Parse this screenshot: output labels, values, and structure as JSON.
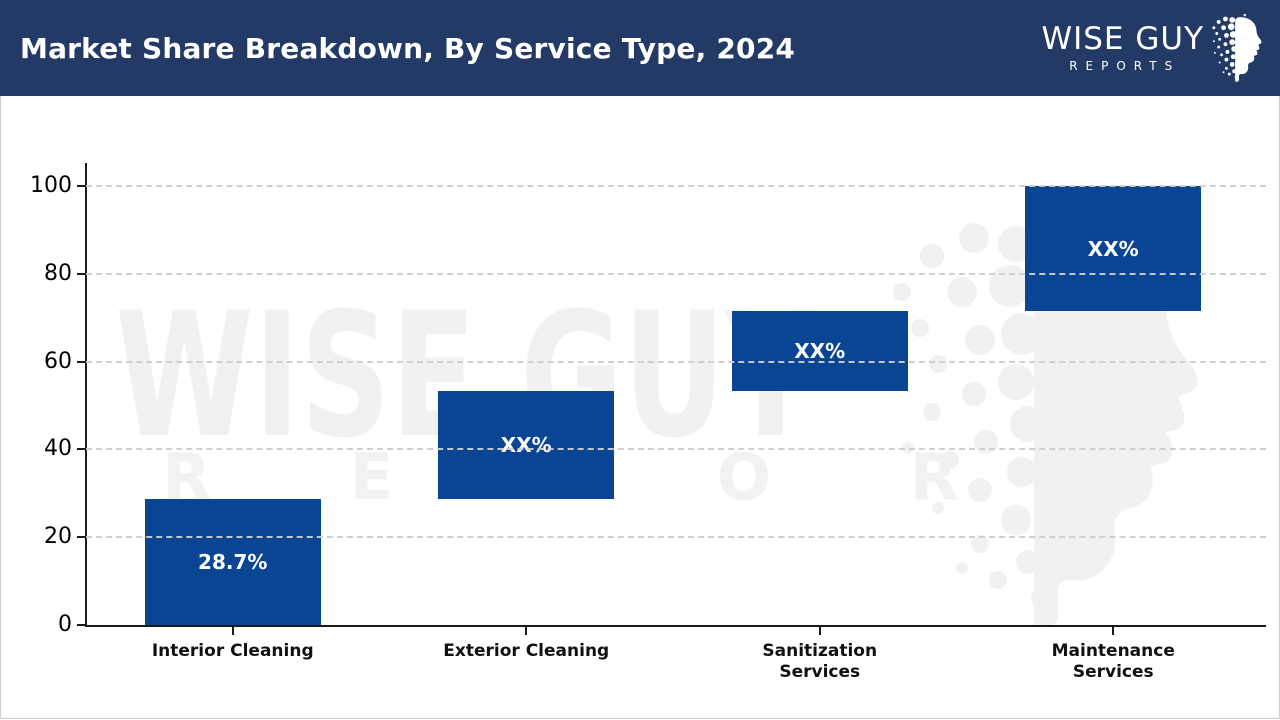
{
  "header": {
    "title": "Market Share Breakdown, By Service Type, 2024",
    "logo": {
      "brand": "WISE GUY",
      "sub": "REPORTS"
    }
  },
  "watermark": {
    "brand": "WISE GUY",
    "sub": "R E P O R T S"
  },
  "chart_data": {
    "type": "bar",
    "variant": "waterfall",
    "title": "Market Share Breakdown, By Service Type, 2024",
    "categories": [
      "Interior Cleaning",
      "Exterior Cleaning",
      "Sanitization\nServices",
      "Maintenance\nServices"
    ],
    "segments": [
      {
        "category": "Interior Cleaning",
        "start": 0,
        "end": 28.7,
        "label": "28.7%"
      },
      {
        "category": "Exterior Cleaning",
        "start": 28.7,
        "end": 53.2,
        "label": "XX%"
      },
      {
        "category": "Sanitization Services",
        "start": 53.2,
        "end": 71.5,
        "label": "XX%"
      },
      {
        "category": "Maintenance Services",
        "start": 71.5,
        "end": 100,
        "label": "XX%"
      }
    ],
    "yticks": [
      0,
      20,
      40,
      60,
      80,
      100
    ],
    "ylim": [
      0,
      105
    ],
    "xlabel": "",
    "ylabel": "",
    "grid": true,
    "legend": false
  },
  "colors": {
    "header_bg": "#233A66",
    "header_text": "#FFFFFF",
    "bar": "#0A4594",
    "bar_label": "#FFFFFF",
    "grid": "#CDCDCD",
    "axis": "#1A1A1A",
    "watermark": "#F1F1F4",
    "content_border": "#CFCFCF"
  }
}
